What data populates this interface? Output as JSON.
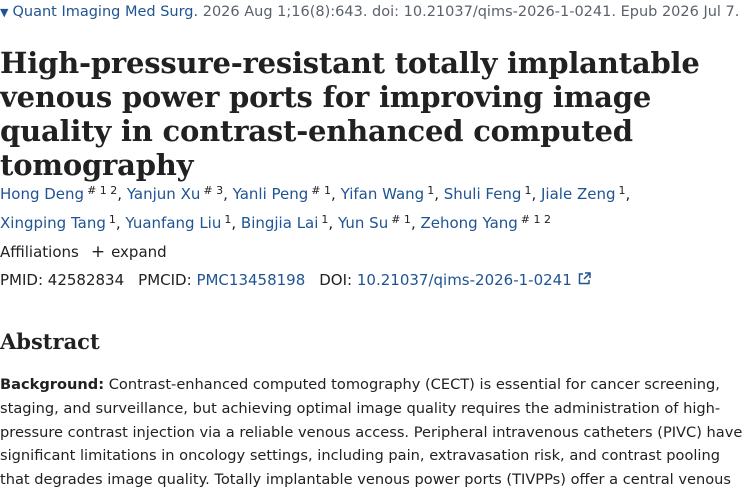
{
  "citation": {
    "journal": "Quant Imaging Med Surg.",
    "details": "2026 Aug 1;16(8):643. doi: 10.21037/qims-2026-1-0241. Epub 2026 Jul 7."
  },
  "title": "High-pressure-resistant totally implantable venous power ports for improving image quality in contrast-enhanced computed tomography",
  "authors": [
    {
      "name": "Hong Deng",
      "sup": "# 1 2"
    },
    {
      "name": "Yanjun Xu",
      "sup": "# 3"
    },
    {
      "name": "Yanli Peng",
      "sup": "# 1"
    },
    {
      "name": "Yifan Wang",
      "sup": "1"
    },
    {
      "name": "Shuli Feng",
      "sup": "1"
    },
    {
      "name": "Jiale Zeng",
      "sup": "1"
    },
    {
      "name": "Xingping Tang",
      "sup": "1"
    },
    {
      "name": "Yuanfang Liu",
      "sup": "1"
    },
    {
      "name": "Bingjia Lai",
      "sup": "1"
    },
    {
      "name": "Yun Su",
      "sup": "# 1"
    },
    {
      "name": "Zehong Yang",
      "sup": "# 1 2"
    }
  ],
  "affiliations": {
    "label": "Affiliations",
    "expand": "expand"
  },
  "ids": {
    "pmid_label": "PMID:",
    "pmid": "42582834",
    "pmcid_label": "PMCID:",
    "pmcid": "PMC13458198",
    "doi_label": "DOI:",
    "doi": "10.21037/qims-2026-1-0241"
  },
  "abstract": {
    "heading": "Abstract",
    "background_label": "Background:",
    "background_text": "Contrast-enhanced computed tomography (CECT) is essential for cancer screening, staging, and surveillance, but achieving optimal image quality requires the administration of high-pressure contrast injection via a reliable venous access. Peripheral intravenous catheters (PIVC) have significant limitations in oncology settings, including pain, extravasation risk, and contrast pooling that degrades image quality. Totally implantable venous power ports (TIVPPs) offer a central venous"
  },
  "colors": {
    "link": "#205493",
    "text": "#212121",
    "muted": "#5b616b"
  }
}
